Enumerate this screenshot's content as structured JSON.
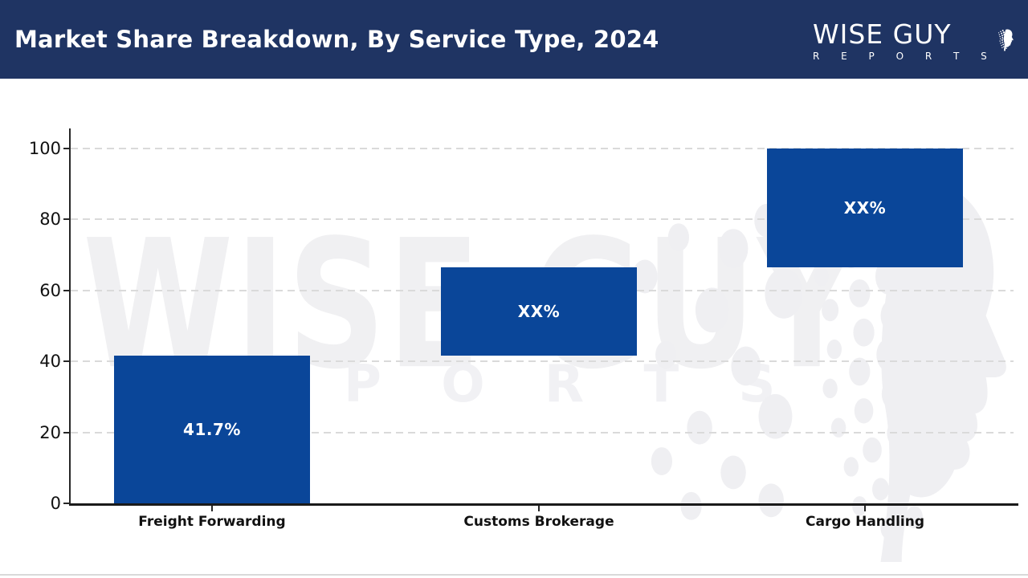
{
  "header": {
    "title": "Market Share Breakdown, By Service Type, 2024",
    "logo": {
      "wordmark": "WISE GUY",
      "subtext": "R E P O R T S"
    }
  },
  "watermark": {
    "wordmark": "WISE GUY",
    "subtext": "P O R T S"
  },
  "chart_data": {
    "type": "bar",
    "subtype": "waterfall",
    "title": "Market Share Breakdown, By Service Type, 2024",
    "categories": [
      "Freight Forwarding",
      "Customs Brokerage",
      "Cargo Handling"
    ],
    "segments": [
      {
        "category": "Freight Forwarding",
        "start": 0,
        "end": 41.7,
        "label": "41.7%"
      },
      {
        "category": "Customs Brokerage",
        "start": 41.7,
        "end": 66.5,
        "label": "XX%"
      },
      {
        "category": "Cargo Handling",
        "start": 66.5,
        "end": 100,
        "label": "XX%"
      }
    ],
    "xlabel": "",
    "ylabel": "",
    "ylim": [
      0,
      100
    ],
    "yticks": [
      0,
      20,
      40,
      60,
      80,
      100
    ],
    "grid": {
      "axis": "y",
      "style": "dashed"
    },
    "legend": "none",
    "colors": {
      "bar": "#0a4699",
      "bar_label": "#ffffff",
      "header_bg": "#1f3463",
      "grid_line": "#dadada",
      "axis": "#1a1a1a",
      "watermark": "#f0f0f2"
    }
  }
}
